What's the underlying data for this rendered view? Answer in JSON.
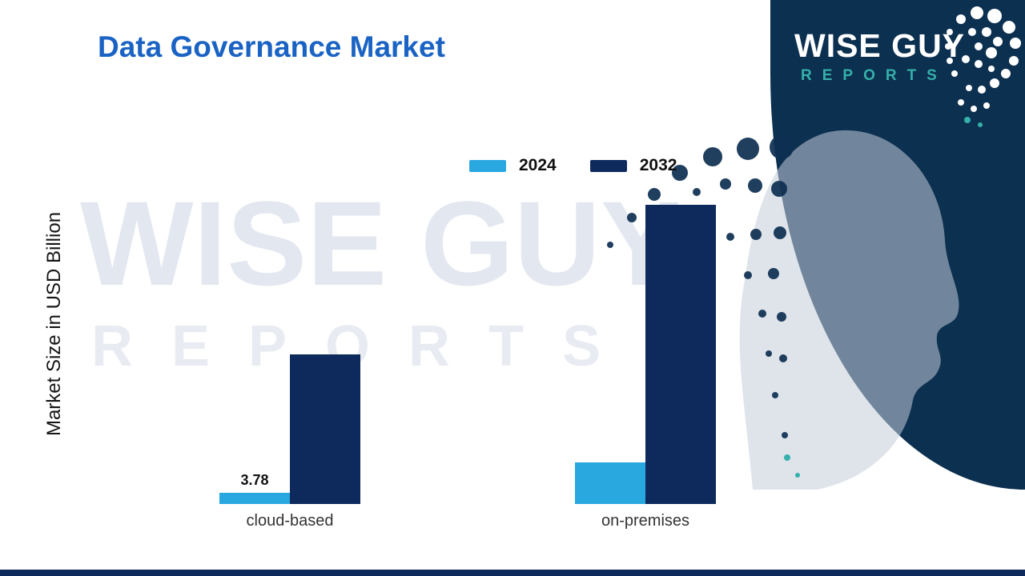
{
  "page": {
    "title": "Data Governance Market"
  },
  "logo": {
    "brand": "WISE GUY",
    "sub": "REPORTS"
  },
  "watermark": {
    "line1": "WISE GUY",
    "line2": "REPORTS"
  },
  "chart_data": {
    "type": "bar",
    "title": "Data Governance Market",
    "ylabel": "Market Size in USD Billion",
    "categories": [
      "cloud-based",
      "on-premises"
    ],
    "series": [
      {
        "name": "2024",
        "color": "#29a8e0",
        "values": [
          3.78,
          14
        ],
        "labels": [
          "3.78",
          null
        ]
      },
      {
        "name": "2032",
        "color": "#0e2a5c",
        "values": [
          50.5,
          101
        ],
        "labels": [
          null,
          null
        ]
      }
    ],
    "ylim": [
      0,
      102
    ],
    "grid": false,
    "axis_lines": false,
    "legend_position": "top-center"
  },
  "colors": {
    "title_blue": "#1a63c4",
    "bar_2024": "#29a8e0",
    "bar_2032": "#0e2a5c",
    "footer_navy": "#0e2a5c",
    "logo_bg": "#0c3050",
    "logo_teal": "#35b0aa",
    "watermark_gray": "#cdd4e5"
  }
}
